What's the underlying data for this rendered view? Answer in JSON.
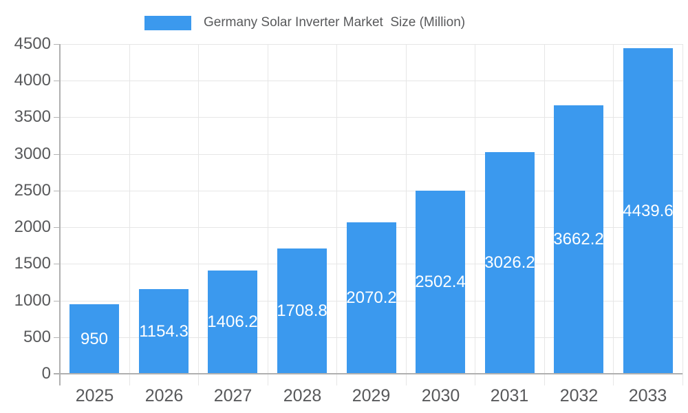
{
  "chart_data": {
    "type": "bar",
    "title": "Germany Solar Inverter Market  Size (Million)",
    "categories": [
      "2025",
      "2026",
      "2027",
      "2028",
      "2029",
      "2030",
      "2031",
      "2032",
      "2033"
    ],
    "series": [
      {
        "name": "Germany Solar Inverter Market  Size (Million)",
        "values": [
          950,
          1154.3,
          1406.2,
          1708.8,
          2070.2,
          2502.4,
          3026.2,
          3662.2,
          4439.6
        ]
      }
    ],
    "value_labels": [
      "950",
      "1154.3",
      "1406.2",
      "1708.8",
      "2070.2",
      "2502.4",
      "3026.2",
      "3662.2",
      "4439.6"
    ],
    "xlabel": "",
    "ylabel": "",
    "ylim": [
      0,
      4500
    ],
    "y_tick_step": 500,
    "y_tick_labels": [
      "0",
      "500",
      "1000",
      "1500",
      "2000",
      "2500",
      "3000",
      "3500",
      "4000",
      "4500"
    ],
    "grid": true,
    "legend_position": "top",
    "value_label_position": "inside-center",
    "colors": {
      "bar": "#3B99EE",
      "grid": "#E6E6E6",
      "axis": "#B0B0B0",
      "tick": "#B3B3B3",
      "text": "#58595B",
      "value_text": "#FFFFFF",
      "background": "#FFFFFF"
    }
  }
}
